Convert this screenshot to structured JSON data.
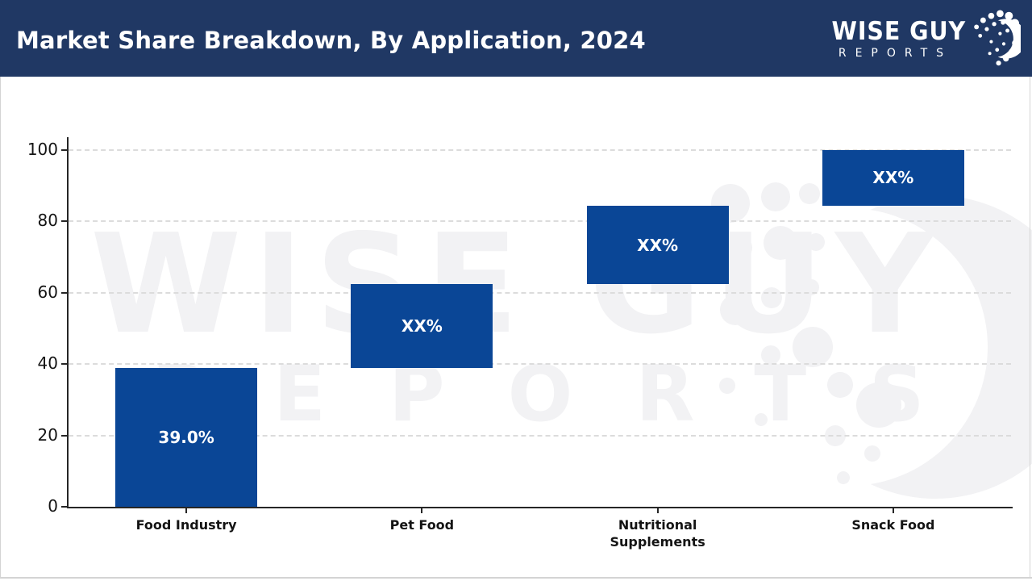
{
  "header": {
    "title": "Market Share Breakdown, By Application, 2024",
    "background_color": "#203864",
    "logo": {
      "line1": "WISE GUY",
      "line2": "REPORTS"
    }
  },
  "watermark": {
    "line1": "WISE GUY",
    "line2": "REPORTS"
  },
  "chart_data": {
    "type": "bar",
    "subtype": "waterfall",
    "title": "Market Share Breakdown, By Application, 2024",
    "categories": [
      "Food Industry",
      "Pet Food",
      "Nutritional Supplements",
      "Snack Food"
    ],
    "segments": [
      {
        "category": "Food Industry",
        "start": 0,
        "end": 39.0,
        "label": "39.0%"
      },
      {
        "category": "Pet Food",
        "start": 39.0,
        "end": 62.4,
        "label": "XX%"
      },
      {
        "category": "Nutritional Supplements",
        "start": 62.4,
        "end": 84.4,
        "label": "XX%"
      },
      {
        "category": "Snack Food",
        "start": 84.4,
        "end": 100,
        "label": "XX%"
      }
    ],
    "ylim": [
      0,
      100
    ],
    "yticks": [
      0,
      20,
      40,
      60,
      80,
      100
    ],
    "xlabel": "",
    "ylabel": "",
    "grid": "horizontal-dashed",
    "legend": "none",
    "bar_color": "#0a4696",
    "bar_label_color": "#ffffff"
  }
}
